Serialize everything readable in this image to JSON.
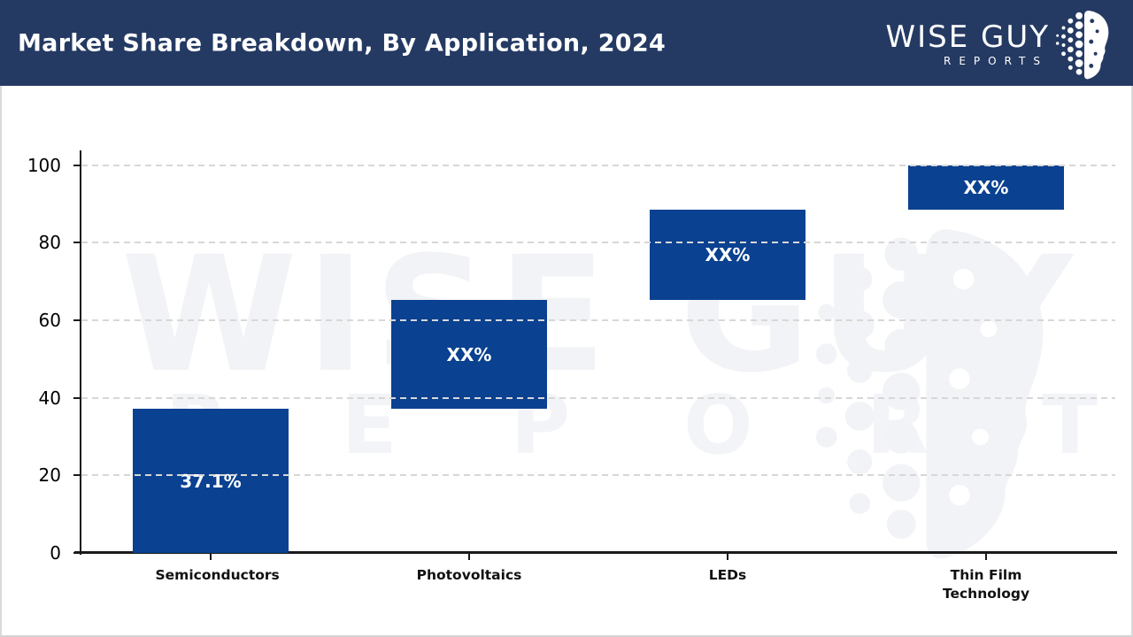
{
  "header": {
    "title": "Market Share Breakdown, By Application, 2024",
    "bg_color": "#243a63",
    "logo": {
      "line1": "WISE GUY",
      "line2": "REPORTS",
      "head_icon": "dotted-face-profile"
    }
  },
  "watermark": {
    "line1": "WISE GUY",
    "line2": "R E P O R T S",
    "head_icon": "dotted-face-profile"
  },
  "chart_data": {
    "type": "bar",
    "subtype": "waterfall-floating-bars",
    "title": "Market Share Breakdown, By Application, 2024",
    "xlabel": "",
    "ylabel": "",
    "categories": [
      "Semiconductors",
      "Photovoltaics",
      "LEDs",
      "Thin Film Technology"
    ],
    "segments": [
      {
        "category": "Semiconductors",
        "start": 0,
        "end": 37.1,
        "label": "37.1%"
      },
      {
        "category": "Photovoltaics",
        "start": 37.1,
        "end": 65.2,
        "label": "XX%"
      },
      {
        "category": "LEDs",
        "start": 65.2,
        "end": 88.5,
        "label": "XX%"
      },
      {
        "category": "Thin Film Technology",
        "start": 88.5,
        "end": 100,
        "label": "XX%"
      }
    ],
    "yticks": [
      0,
      20,
      40,
      60,
      80,
      100
    ],
    "ylim": [
      0,
      103.8
    ],
    "grid": "dashed-horizontal",
    "legend": false,
    "bar_color": "#0a4190",
    "bar_label_color": "#ffffff",
    "grid_color": "#d7d7d7",
    "axis_color": "#1a1a1a"
  }
}
